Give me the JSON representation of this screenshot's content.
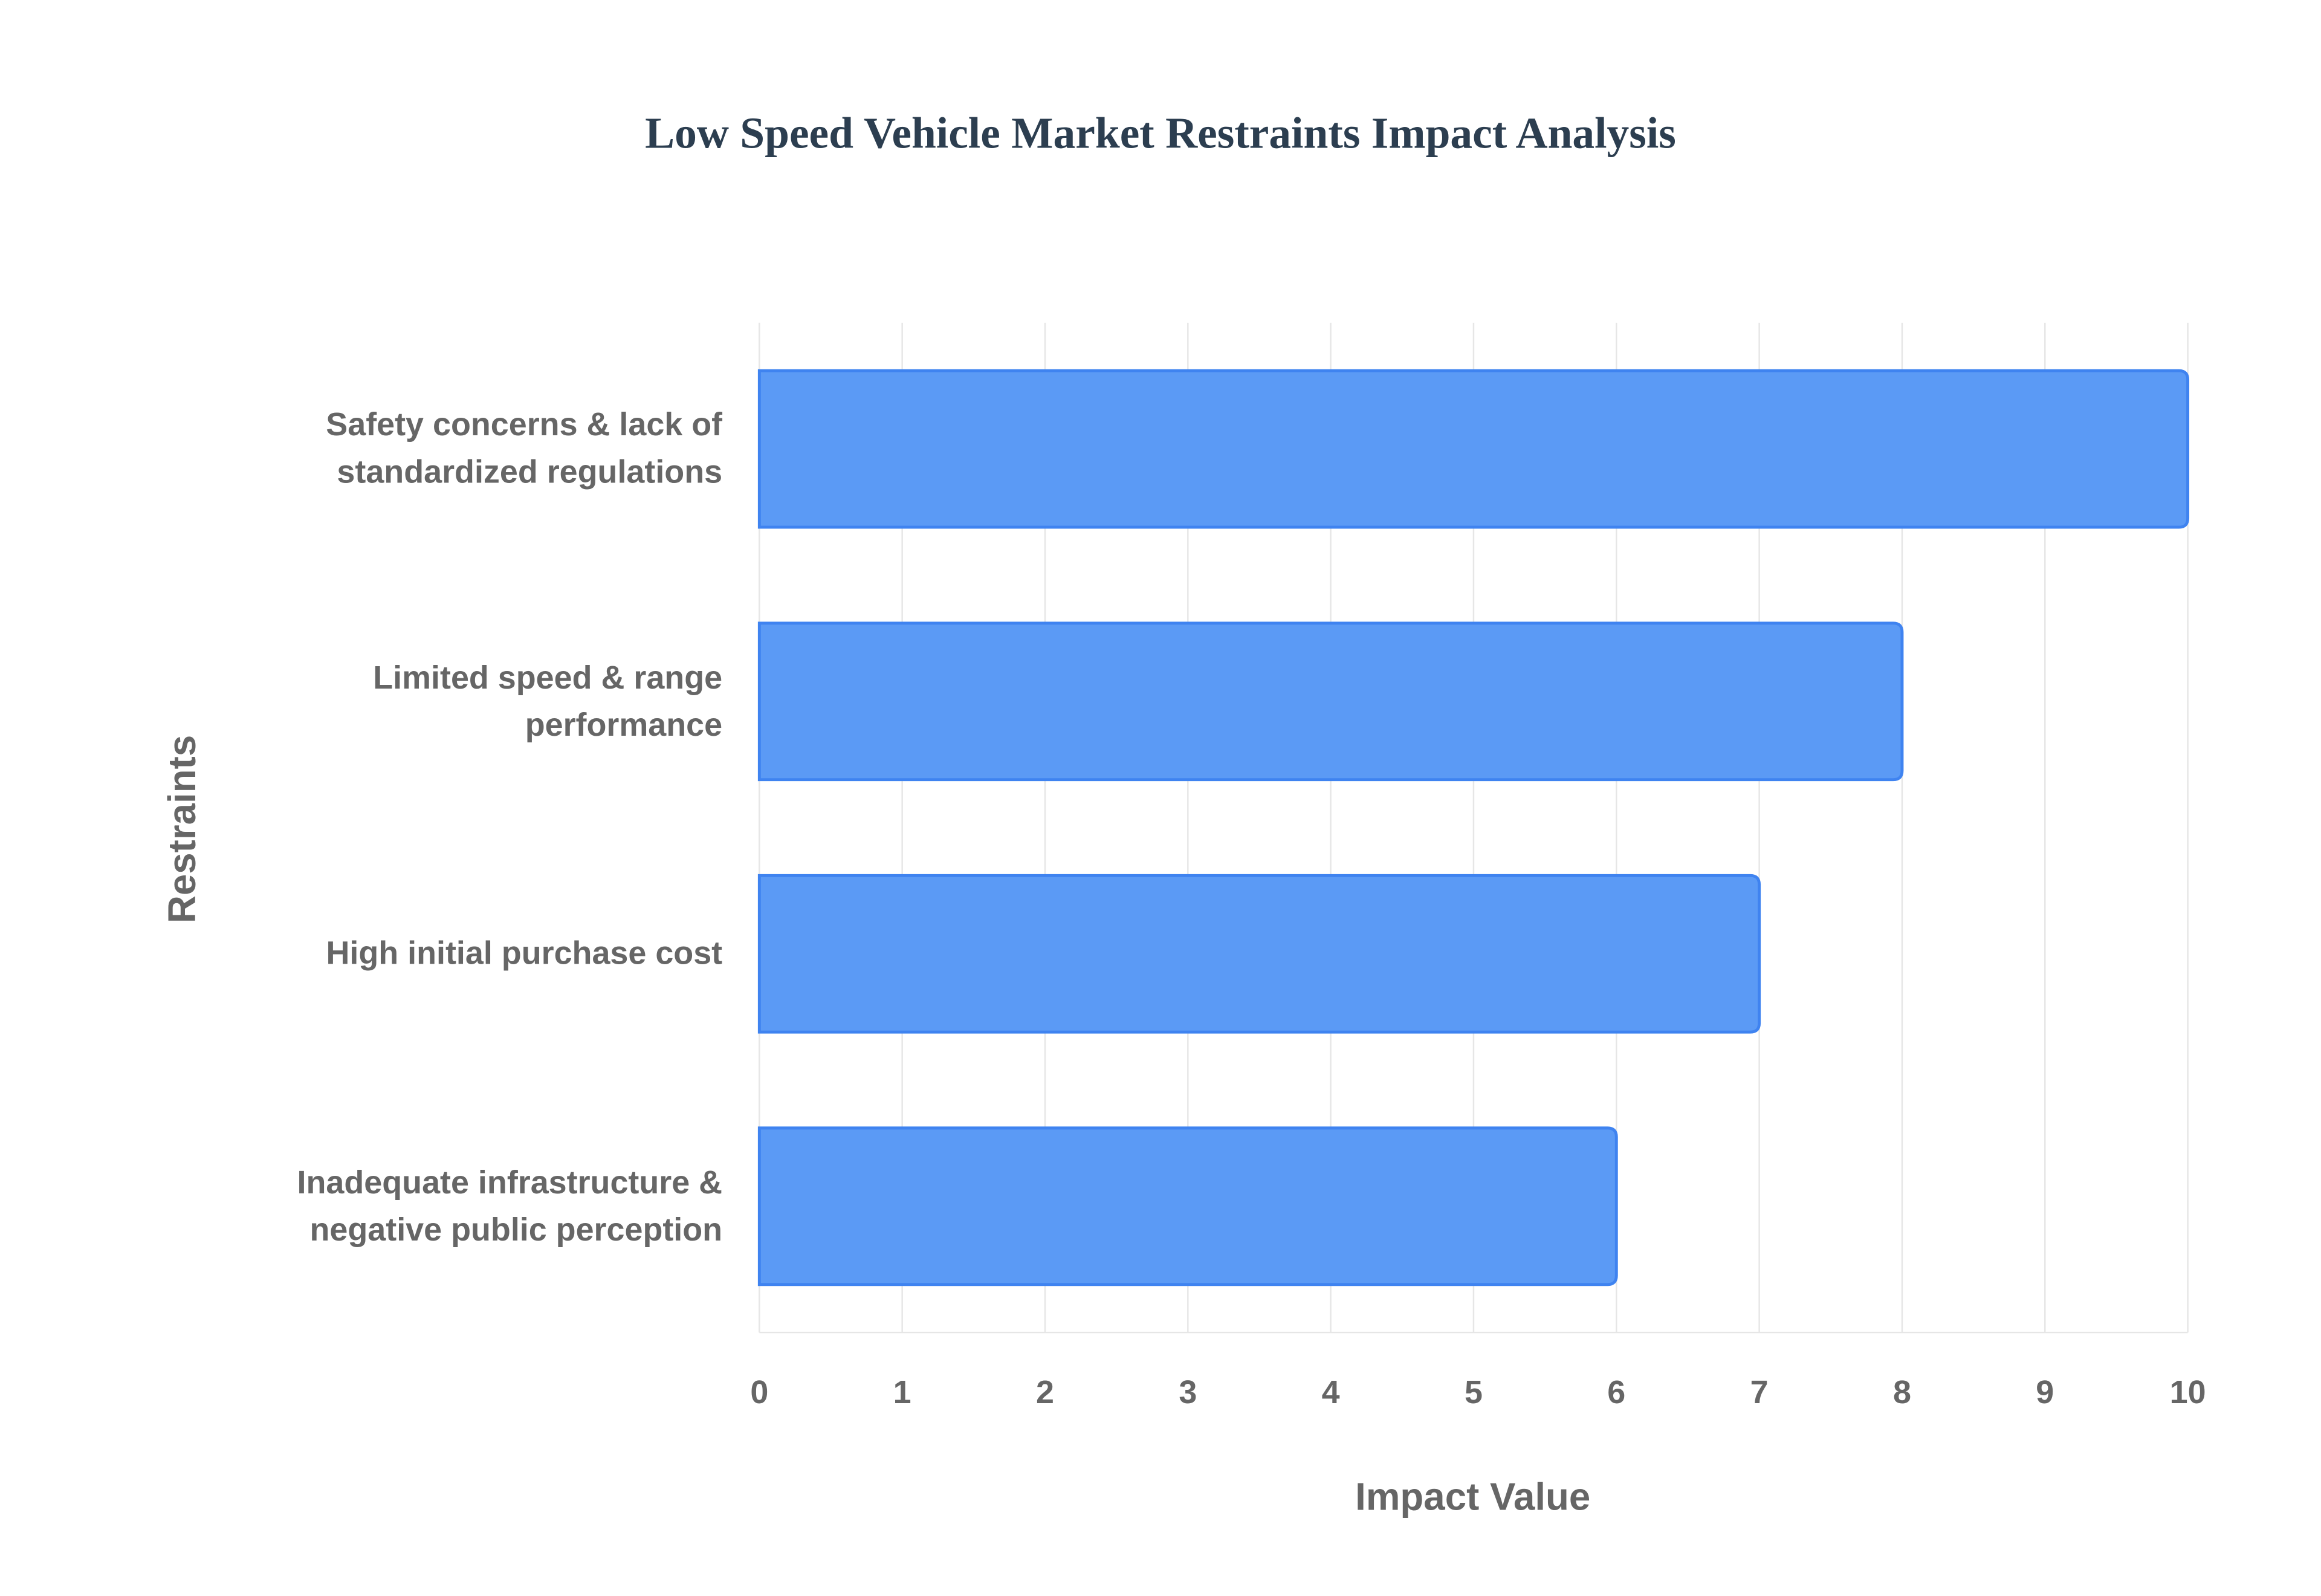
{
  "chart_data": {
    "type": "barh",
    "title": "Low Speed Vehicle Market Restraints Impact Analysis",
    "categories": [
      "Safety concerns & lack of standardized regulations",
      "Limited speed & range performance",
      "High initial purchase cost",
      "Inadequate infrastructure & negative public perception"
    ],
    "values": [
      10,
      8,
      7,
      6
    ],
    "color": "#5b9af5",
    "xlim": [
      0,
      10
    ],
    "xticks": [
      0,
      1,
      2,
      3,
      4,
      5,
      6,
      7,
      8,
      9,
      10
    ],
    "grid": true,
    "xlabel": "Impact Value",
    "ylabel": "Restraints"
  }
}
